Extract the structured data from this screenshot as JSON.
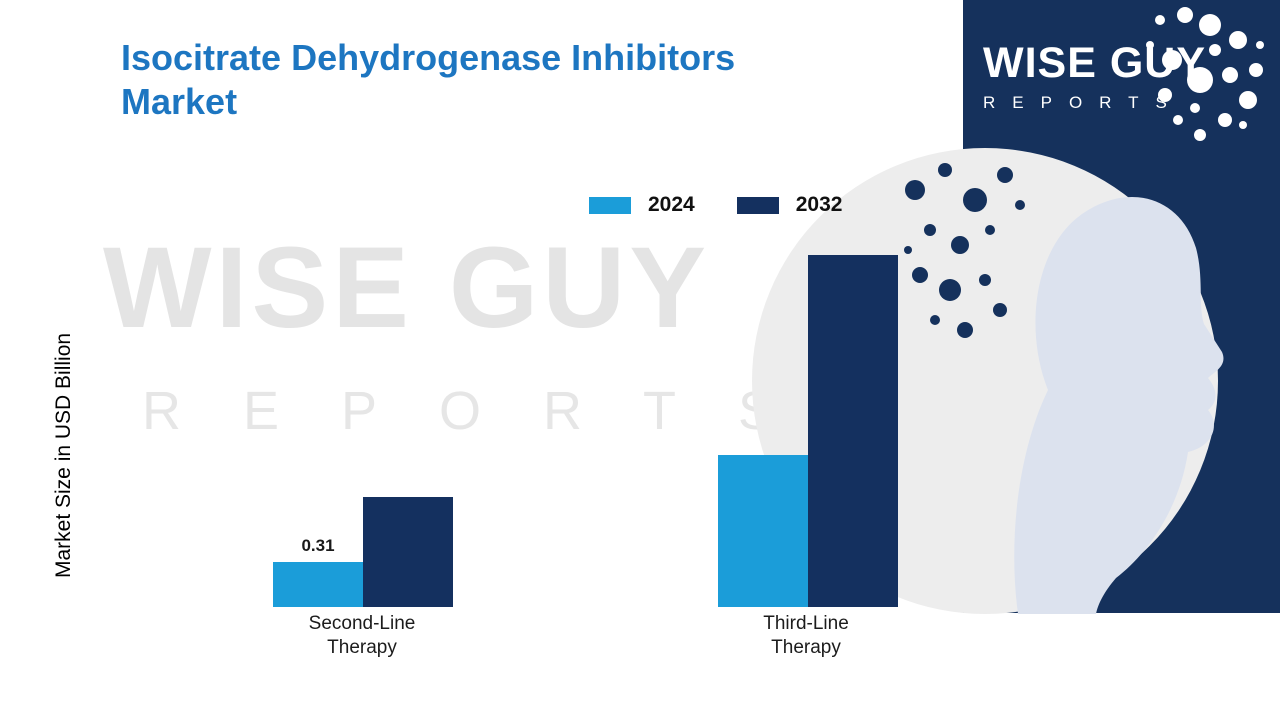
{
  "title": "Isocitrate Dehydrogenase Inhibitors Market",
  "brand": {
    "name_line": "WISE GUY",
    "reports_line": "REPORTS"
  },
  "watermark": {
    "line1": "WISE GUY",
    "line2": "REPORTS"
  },
  "chart_data": {
    "type": "bar",
    "title": "Isocitrate Dehydrogenase Inhibitors Market",
    "ylabel": "Market Size in USD Billion",
    "value_unit": "USD Billion",
    "categories": [
      "Second-Line Therapy",
      "Third-Line Therapy"
    ],
    "series": [
      {
        "name": "2024",
        "color": "#1b9dd9",
        "values": [
          0.31,
          1.05
        ],
        "data_labels": [
          "0.31",
          ""
        ]
      },
      {
        "name": "2032",
        "color": "#14305f",
        "values": [
          0.76,
          2.43
        ],
        "data_labels": [
          "",
          ""
        ]
      }
    ],
    "ylim": [
      0,
      2.6
    ],
    "grid": false,
    "legend_position": "top-right"
  },
  "colors": {
    "title_blue": "#1d76c1",
    "panel_navy": "#15315c",
    "bar_2024": "#1b9dd9",
    "bar_2032": "#14305f",
    "watermark_gray": "#e4e4e4"
  }
}
